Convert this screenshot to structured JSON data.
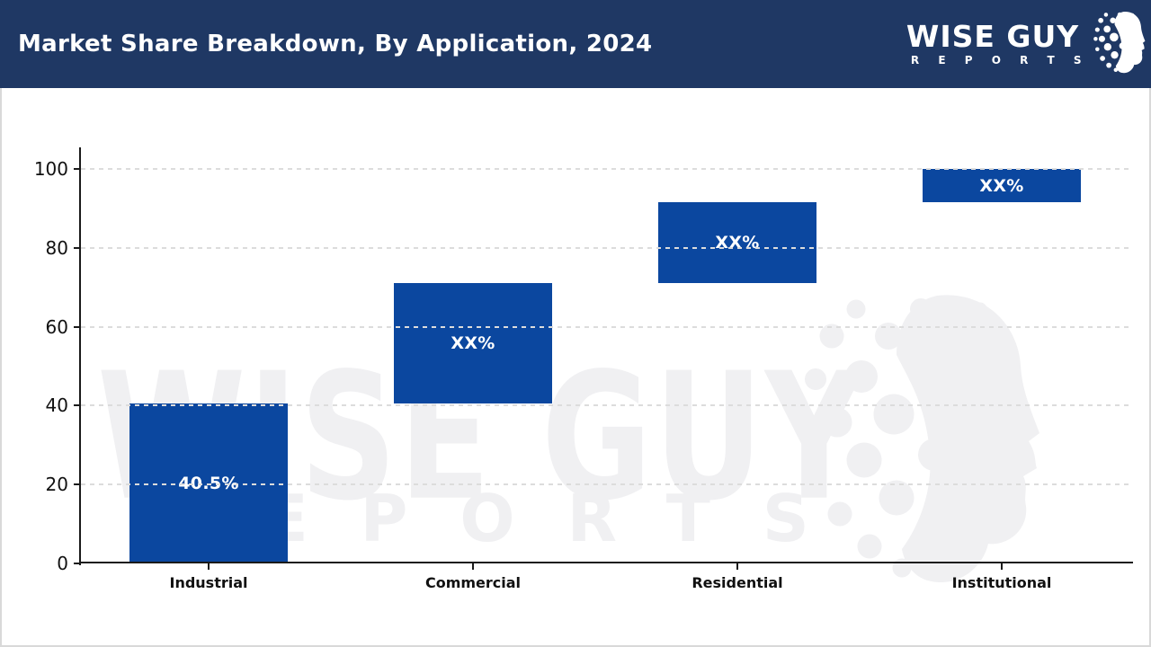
{
  "header": {
    "title": "Market Share Breakdown, By Application, 2024",
    "logo": {
      "wordmark": "WISE GUY",
      "subtext": "R E P O R T S"
    }
  },
  "watermark": {
    "wordmark": "WISE GUY",
    "subtext": "REPORTS"
  },
  "chart_data": {
    "type": "bar",
    "variant": "waterfall-floating-segments",
    "title": "Market Share Breakdown, By Application, 2024",
    "categories": [
      "Industrial",
      "Commercial",
      "Residential",
      "Institutional"
    ],
    "segments": [
      {
        "category": "Industrial",
        "start": 0,
        "end": 40.5,
        "value": 40.5,
        "label": "40.5%"
      },
      {
        "category": "Commercial",
        "start": 40.5,
        "end": 71,
        "value": 30.5,
        "label": "XX%"
      },
      {
        "category": "Residential",
        "start": 71,
        "end": 91.5,
        "value": 20.5,
        "label": "XX%"
      },
      {
        "category": "Institutional",
        "start": 91.5,
        "end": 100,
        "value": 8.5,
        "label": "XX%"
      }
    ],
    "xlabel": "",
    "ylabel": "",
    "ylim": [
      0,
      105
    ],
    "yticks": [
      0,
      20,
      40,
      60,
      80,
      100
    ],
    "grid": "horizontal-dashed",
    "legend": "none",
    "bar_color": "#0b479f",
    "bar_label_color": "#ffffff"
  },
  "colors": {
    "header_bg": "#1f3864",
    "bar": "#0b479f",
    "grid": "#dcdcdc",
    "axis": "#1a1a1a",
    "watermark": "#f0f0f2",
    "title_text": "#ffffff"
  }
}
